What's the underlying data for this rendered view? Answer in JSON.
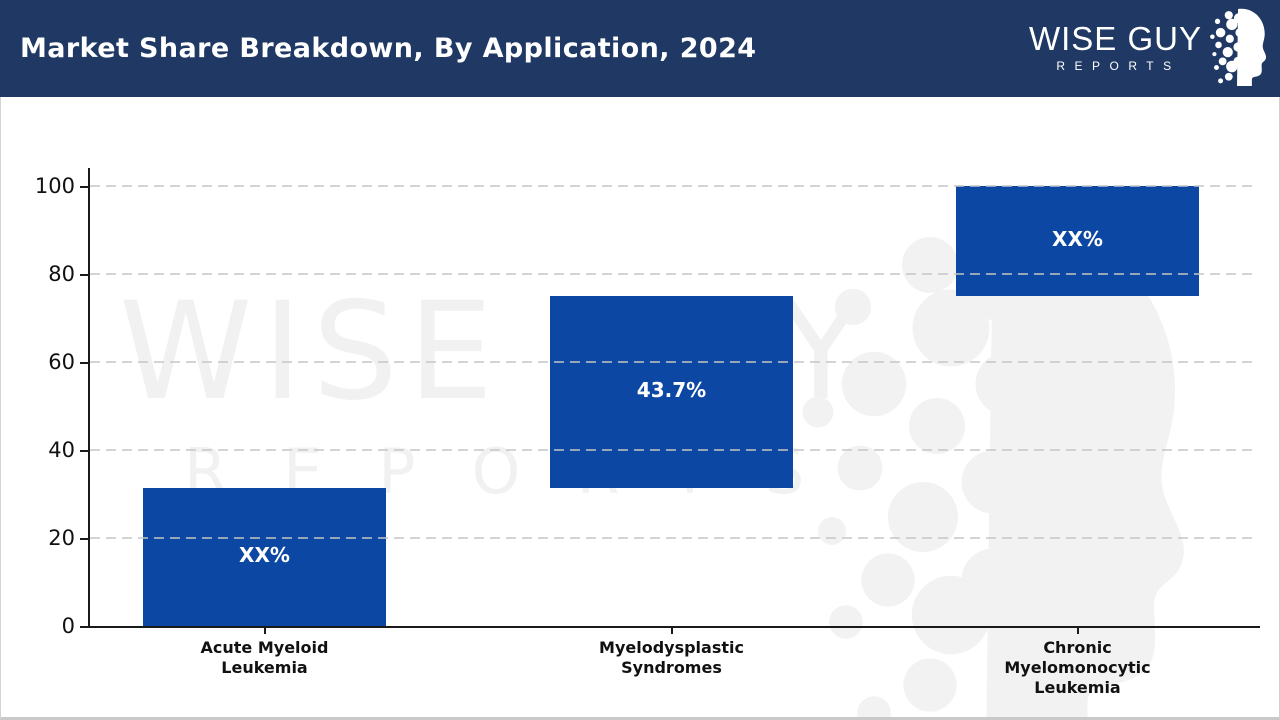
{
  "header": {
    "title": "Market Share Breakdown, By Application, 2024",
    "logo": {
      "line1": "WISE GUY",
      "line2": "REPORTS"
    }
  },
  "watermark": {
    "line1": "WISE GUY",
    "line2": "REPORTS"
  },
  "chart_data": {
    "type": "bar",
    "variant": "floating-waterfall",
    "title": "Market Share Breakdown, By Application, 2024",
    "categories": [
      "Acute Myeloid Leukemia",
      "Myelodysplastic Syndromes",
      "Chronic Myelomonocytic Leukemia"
    ],
    "category_lines": [
      [
        "Acute Myeloid",
        "Leukemia"
      ],
      [
        "Myelodysplastic",
        "Syndromes"
      ],
      [
        "Chronic",
        "Myelomonocytic",
        "Leukemia"
      ]
    ],
    "segments": [
      {
        "category": "Acute Myeloid Leukemia",
        "start": 0,
        "end": 31.3,
        "label": "XX%"
      },
      {
        "category": "Myelodysplastic Syndromes",
        "start": 31.3,
        "end": 75.0,
        "label": "43.7%"
      },
      {
        "category": "Chronic Myelomonocytic Leukemia",
        "start": 75.0,
        "end": 100,
        "label": "XX%"
      }
    ],
    "bar_labels": [
      "XX%",
      "43.7%",
      "XX%"
    ],
    "yticks": [
      0,
      20,
      40,
      60,
      80,
      100
    ],
    "ylim": [
      0,
      100
    ],
    "xlabel": "",
    "ylabel": "",
    "grid": "horizontal-dashed",
    "legend": "none",
    "colors": {
      "bar": "#0c47a3",
      "header": "#1f3864",
      "grid": "#c6c6c6",
      "axis": "#1a1a1a",
      "watermark": "#f1f1f1"
    }
  }
}
